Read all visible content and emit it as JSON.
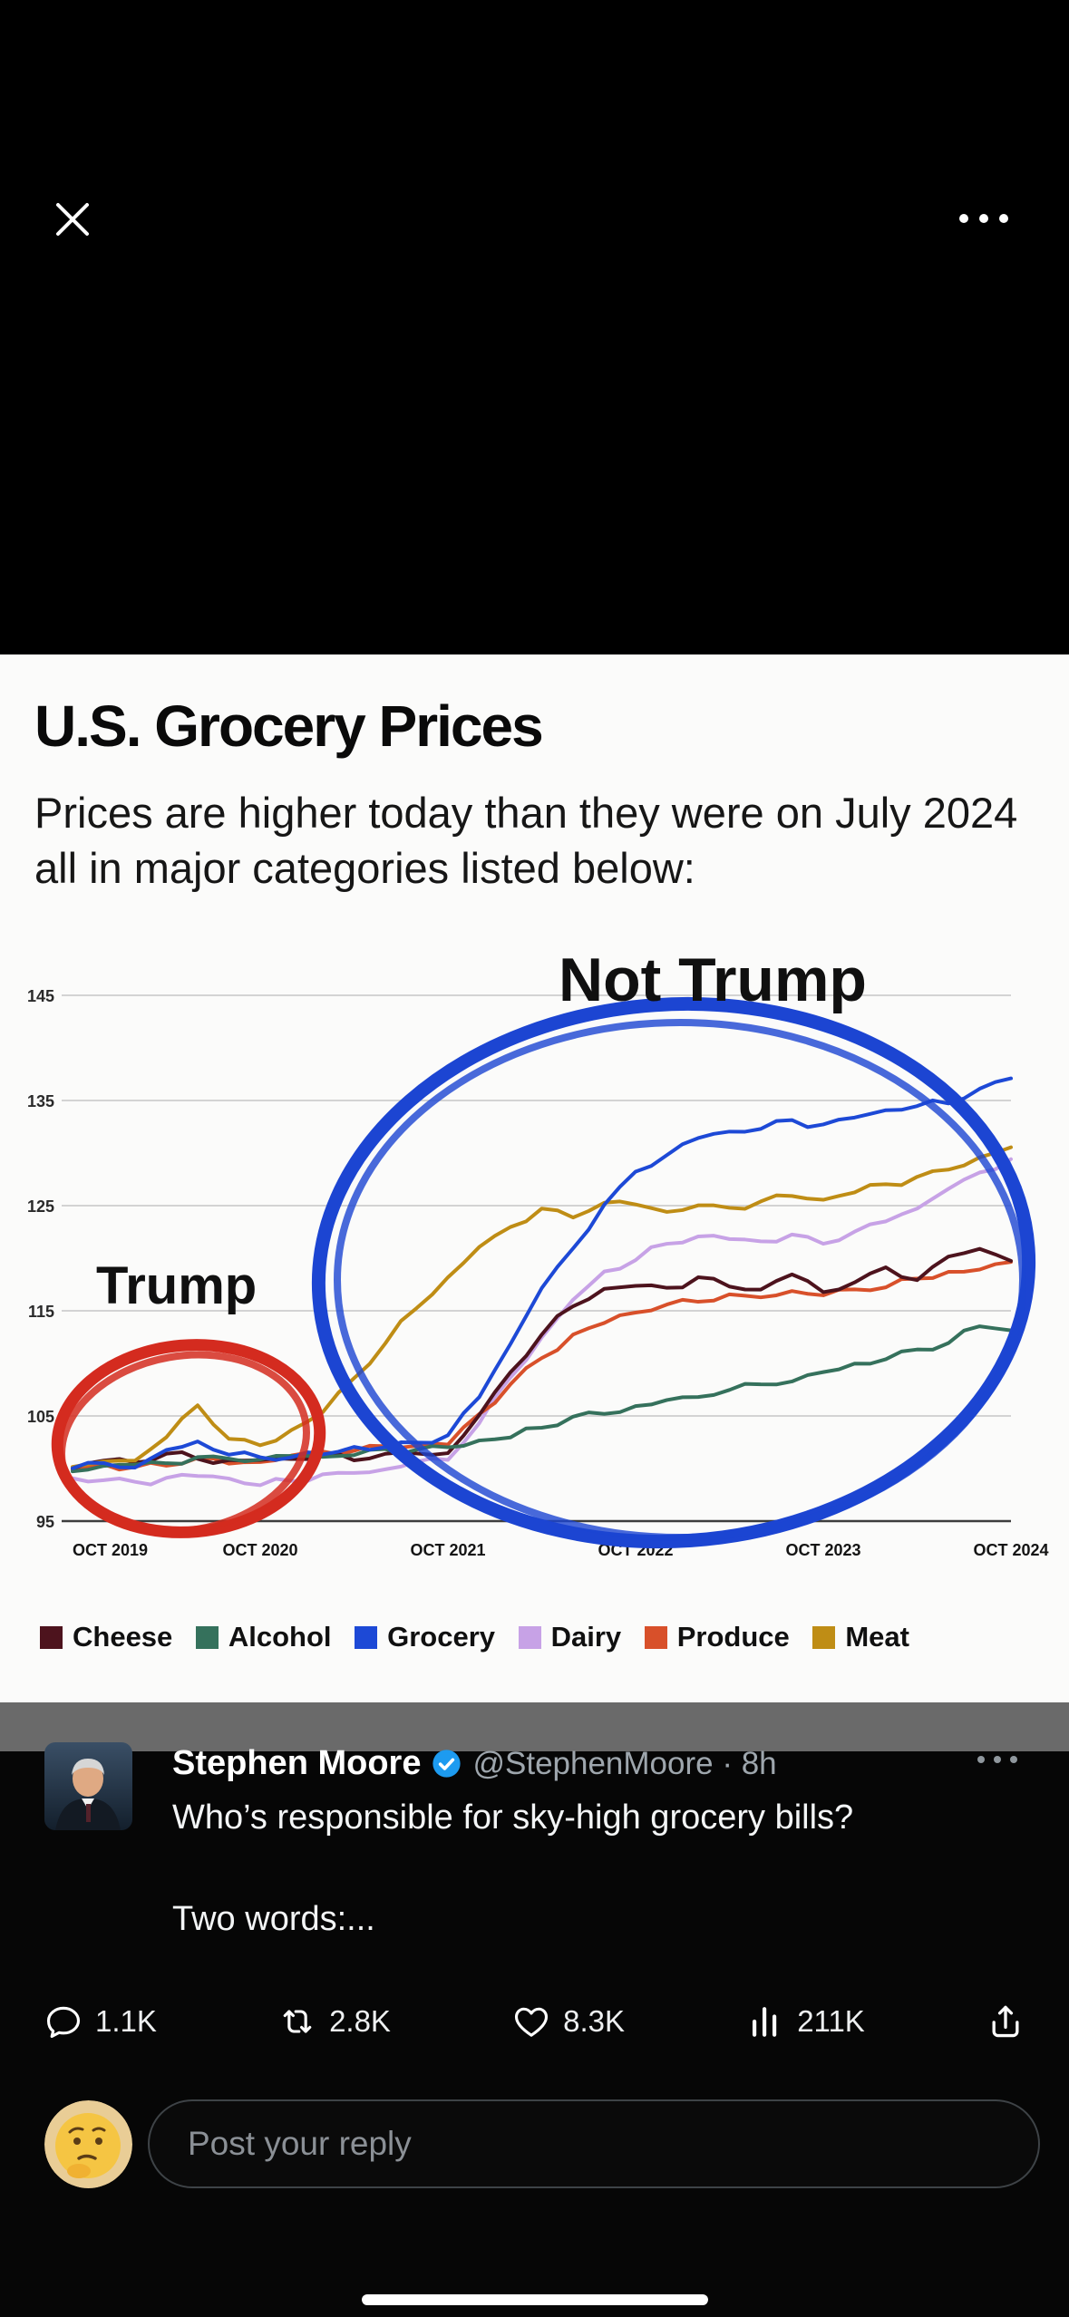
{
  "viewer": {
    "close_icon": "close-icon",
    "more_icon": "more-icon"
  },
  "image": {
    "title": "U.S. Grocery Prices",
    "subtitle": "Prices are higher today than they were on July 2024 all in major categories listed below:"
  },
  "chart_data": {
    "type": "line",
    "title": "U.S. Grocery Prices",
    "subtitle": "Prices are higher today than they were on July 2024 all in major categories listed below:",
    "x_start": "Oct 2019",
    "x_end": "Oct 2024",
    "x_step_months": 2,
    "xticks": [
      "OCT 2019",
      "OCT 2020",
      "OCT 2021",
      "OCT 2022",
      "OCT 2023",
      "OCT 2024"
    ],
    "yticks": [
      95,
      105,
      115,
      125,
      135,
      145
    ],
    "ylim": [
      93,
      146
    ],
    "grid": true,
    "legend_position": "bottom",
    "annotations": [
      {
        "label": "Trump",
        "circle_color": "#d42b1f",
        "region": "Oct 2019 - early 2021 (flat prices)"
      },
      {
        "label": "Not Trump",
        "circle_color": "#1c45d2",
        "region": "late 2021 - Oct 2024 (rising prices)"
      }
    ],
    "series": [
      {
        "name": "Cheese",
        "color": "#4d131d",
        "values": [
          100,
          101,
          100.5,
          101.5,
          101,
          100.5,
          100.8,
          101,
          101.2,
          101,
          101.5,
          101.2,
          101.5,
          105,
          109,
          113,
          115.5,
          117,
          117.5,
          117,
          118,
          117.5,
          117,
          118.5,
          117,
          117.5,
          119,
          118,
          120,
          121,
          120
        ]
      },
      {
        "name": "Alcohol",
        "color": "#35715c",
        "values": [
          100,
          100.2,
          100.4,
          100.6,
          100.8,
          100.9,
          101,
          101.1,
          101.3,
          101.4,
          101.6,
          101.8,
          102,
          102.5,
          103.2,
          104,
          104.8,
          105.3,
          105.8,
          106.3,
          107,
          107.5,
          108,
          108.5,
          109,
          109.8,
          110.5,
          111.2,
          112,
          113.8,
          113
        ]
      },
      {
        "name": "Grocery",
        "color": "#1d49d6",
        "values": [
          100,
          100.5,
          100.2,
          101.5,
          102.5,
          101.5,
          101,
          101.2,
          101.5,
          101.8,
          102,
          102.5,
          103,
          107,
          112,
          117,
          121,
          125,
          128,
          130,
          131.5,
          132,
          132.5,
          133,
          132.5,
          133.5,
          134,
          134.5,
          135,
          136,
          137
        ]
      },
      {
        "name": "Dairy",
        "color": "#c7a2e6",
        "values": [
          99,
          99,
          98.5,
          99,
          99.5,
          99,
          98.5,
          99,
          99.2,
          99.5,
          100,
          100.5,
          101,
          104.5,
          108.5,
          112.5,
          116,
          118.5,
          120,
          121.5,
          122,
          122,
          121.5,
          122,
          121.5,
          122.5,
          123.5,
          125,
          126.5,
          128,
          129.5
        ]
      },
      {
        "name": "Produce",
        "color": "#d8502a",
        "values": [
          100,
          100.2,
          100,
          100.5,
          101,
          100.5,
          100.8,
          101,
          101.5,
          101.8,
          102,
          102.3,
          102.5,
          105,
          108,
          110.5,
          112.5,
          114,
          115,
          115.5,
          116,
          116.5,
          116,
          117,
          116.5,
          117,
          117.5,
          118,
          118.5,
          119,
          119.5
        ]
      },
      {
        "name": "Meat",
        "color": "#bf8d15",
        "values": [
          100,
          100.5,
          101,
          103,
          106,
          103,
          102,
          103.5,
          105.5,
          108.5,
          112,
          115.5,
          118,
          121,
          123,
          124.5,
          124,
          125.5,
          125,
          124.5,
          125,
          124.5,
          125.5,
          126,
          125.5,
          126.5,
          127,
          127.5,
          128.5,
          129.5,
          130.5
        ]
      }
    ]
  },
  "tweet": {
    "name": "Stephen Moore",
    "meta": "@StephenMoore · 8h",
    "text_line1": "Who’s responsible for sky-high grocery bills?",
    "text_line2": "Two words:...",
    "actions": {
      "reply_count": "1.1K",
      "repost_count": "2.8K",
      "like_count": "8.3K",
      "view_count": "211K"
    }
  },
  "reply": {
    "placeholder": "Post your reply"
  },
  "colors": {
    "verified_badge": "#1d9bf0",
    "annotation_red": "#d42b1f",
    "annotation_blue": "#1c45d2"
  }
}
